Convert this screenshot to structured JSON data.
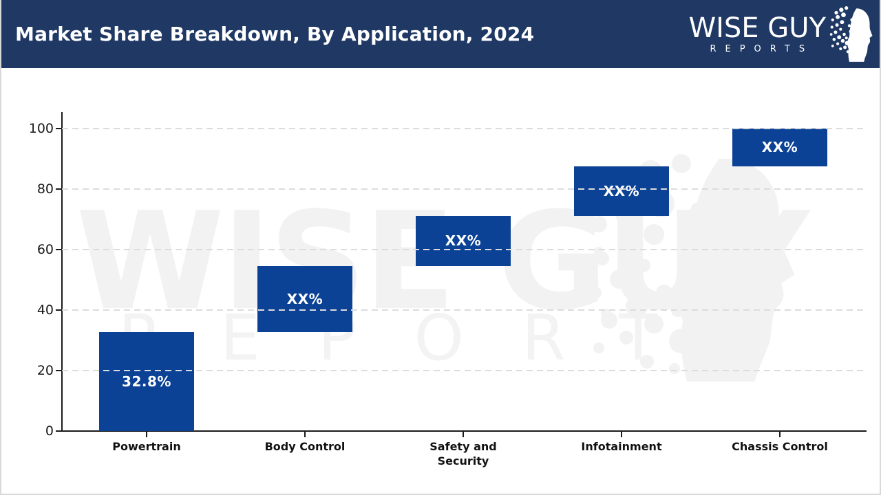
{
  "header": {
    "title": "Market Share Breakdown, By Application, 2024",
    "logo": {
      "line1": "WISE GUY",
      "line2": "REPORTS"
    }
  },
  "watermark": {
    "line1": "WISE GUY",
    "line2": "REPORTS"
  },
  "colors": {
    "header_bg": "#1F3864",
    "bar": "#0B4296",
    "bar_label": "#FFFFFF",
    "gridline": "#DCDCDC",
    "axis": "#1A1A1A",
    "watermark": "#F2F2F2",
    "page_border": "#D9D9D9"
  },
  "chart_data": {
    "type": "bar",
    "subtype": "waterfall",
    "title": "Market Share Breakdown, By Application, 2024",
    "xlabel": "",
    "ylabel": "",
    "categories": [
      "Powertrain",
      "Body Control",
      "Safety and Security",
      "Infotainment",
      "Chassis Control"
    ],
    "segments": [
      {
        "category": "Powertrain",
        "start": 0,
        "end": 32.8,
        "label": "32.8%"
      },
      {
        "category": "Body Control",
        "start": 32.8,
        "end": 54.6,
        "label": "XX%"
      },
      {
        "category": "Safety and Security",
        "start": 54.6,
        "end": 71.1,
        "label": "XX%"
      },
      {
        "category": "Infotainment",
        "start": 71.1,
        "end": 87.6,
        "label": "XX%"
      },
      {
        "category": "Chassis Control",
        "start": 87.6,
        "end": 100,
        "label": "XX%"
      }
    ],
    "y_ticks": [
      0,
      20,
      40,
      60,
      80,
      100
    ],
    "ylim": [
      0,
      105.5
    ],
    "grid": "horizontal-dashed",
    "legend": "none"
  }
}
